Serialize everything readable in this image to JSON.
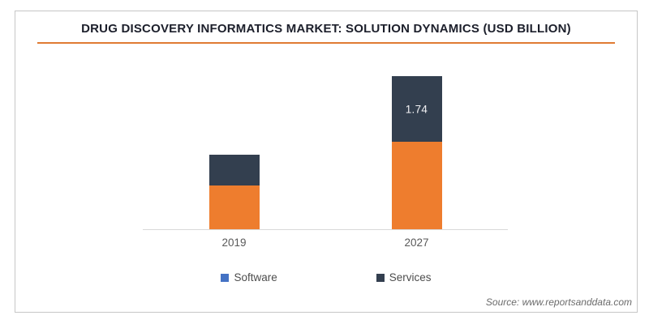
{
  "window": {
    "background_color": "#ffffff",
    "border_color": "#c6c6c6"
  },
  "header": {
    "title": "DRUG DISCOVERY INFORMATICS MARKET: SOLUTION DYNAMICS (USD BILLION)",
    "title_color": "#1c1f2b",
    "underline_color": "#e07b33"
  },
  "chart_data": {
    "type": "bar",
    "stacked": true,
    "title": "DRUG DISCOVERY INFORMATICS MARKET: SOLUTION DYNAMICS (USD BILLION)",
    "unit": "USD Billion",
    "categories": [
      "2019",
      "2027"
    ],
    "series": [
      {
        "name": "Software",
        "values": [
          1.16,
          2.32
        ],
        "bar_color": "#ee7d2e",
        "legend_color": "#4472c4"
      },
      {
        "name": "Services",
        "values": [
          0.82,
          1.74
        ],
        "bar_color": "#333f4f",
        "legend_color": "#333f4f"
      }
    ],
    "data_labels": [
      {
        "category": "2027",
        "series": "Services",
        "text": "1.74"
      }
    ],
    "xlabel": "",
    "ylabel": "",
    "ylim": [
      0,
      4.35
    ],
    "grid": false,
    "axis_line_color": "#d9d9d9",
    "tick_label_color": "#595959",
    "value_label_color": "#f2f2f4",
    "legend_position": "bottom"
  },
  "legend": {
    "items": [
      {
        "label": "Software"
      },
      {
        "label": "Services"
      }
    ]
  },
  "footer": {
    "source": "Source: www.reportsanddata.com"
  }
}
